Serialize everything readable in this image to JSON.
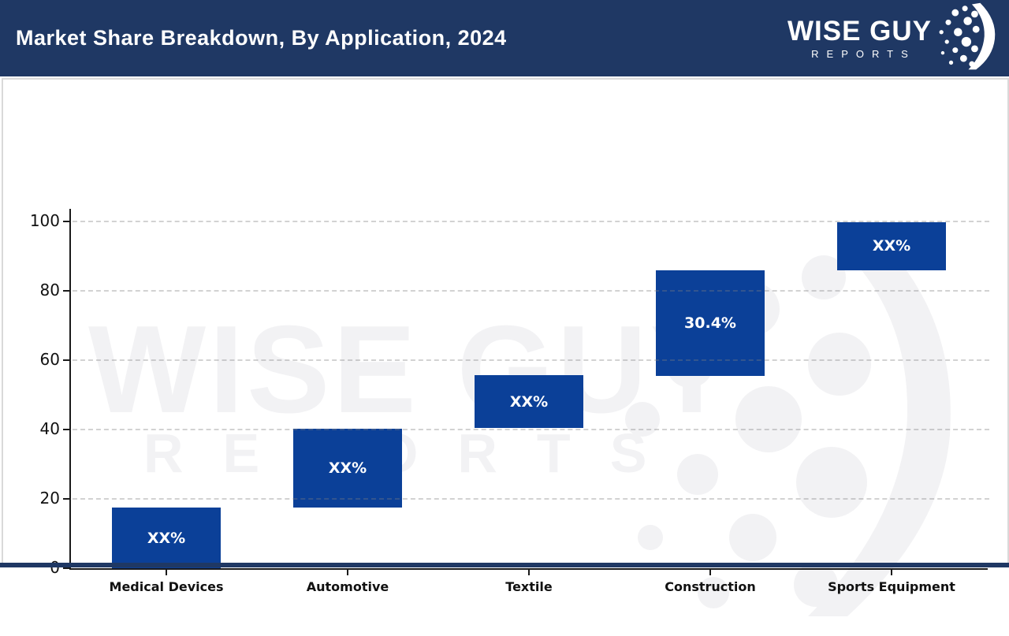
{
  "header": {
    "title": "Market Share Breakdown, By Application, 2024",
    "logo": {
      "line1": "WISE GUY",
      "line2": "REPORTS"
    }
  },
  "watermark": {
    "line1": "WISE GUY",
    "line2": "REPORTS"
  },
  "colors": {
    "header_bg": "#1f3864",
    "bar": "#0b4098",
    "bar_label": "#ffffff",
    "axis": "#1a1a1a",
    "grid": "#d8d8d8",
    "tick_label": "#111111",
    "watermark": "#f2f2f4",
    "border": "#d9d9d9",
    "footer_bar": "#1f3864"
  },
  "chart_data": {
    "type": "bar",
    "subtype": "waterfall",
    "title": "Market Share Breakdown, By Application, 2024",
    "categories": [
      "Medical Devices",
      "Automotive",
      "Textile",
      "Construction",
      "Sports Equipment"
    ],
    "values": [
      17.4,
      22.6,
      15.2,
      30.4,
      13.9
    ],
    "bars": [
      {
        "category": "Medical Devices",
        "start": 0,
        "end": 17.4,
        "label": "XX%"
      },
      {
        "category": "Automotive",
        "start": 17.6,
        "end": 40.2,
        "label": "XX%"
      },
      {
        "category": "Textile",
        "start": 40.4,
        "end": 55.6,
        "label": "XX%"
      },
      {
        "category": "Construction",
        "start": 55.4,
        "end": 85.8,
        "label": "30.4%"
      },
      {
        "category": "Sports Equipment",
        "start": 85.9,
        "end": 99.8,
        "label": "XX%"
      }
    ],
    "xlabel": "",
    "ylabel": "",
    "ylim": [
      0,
      105
    ],
    "yticks": [
      0,
      20,
      40,
      60,
      80,
      100
    ],
    "grid": "dashed-horizontal",
    "legend": "none"
  }
}
